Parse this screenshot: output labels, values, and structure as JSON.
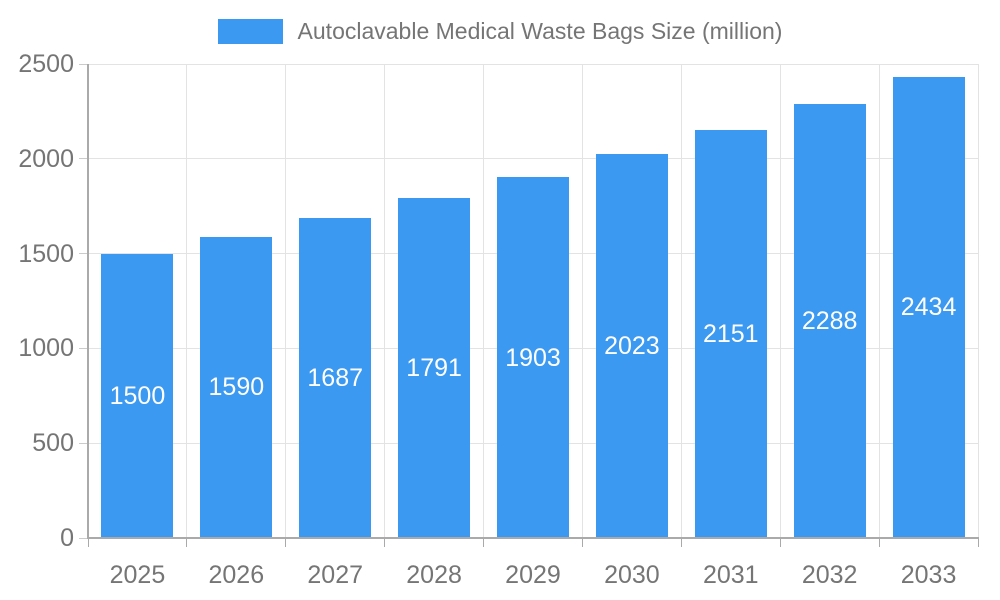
{
  "legend": {
    "series_label": "Autoclavable Medical Waste Bags Size (million)"
  },
  "chart_data": {
    "type": "bar",
    "title": "Autoclavable Medical Waste Bags Size (million)",
    "categories": [
      "2025",
      "2026",
      "2027",
      "2028",
      "2029",
      "2030",
      "2031",
      "2032",
      "2033"
    ],
    "values": [
      1500,
      1590,
      1687,
      1791,
      1903,
      2023,
      2151,
      2288,
      2434
    ],
    "xlabel": "",
    "ylabel": "",
    "ylim": [
      0,
      2500
    ],
    "yticks": [
      0,
      500,
      1000,
      1500,
      2000,
      2500
    ],
    "grid": true,
    "legend_position": "top-center",
    "value_labels": "inside-bar-centered",
    "colors": {
      "bar": "#3B99F2",
      "bar_label": "#FFFFFF",
      "axis_text": "#757575",
      "gridline": "#E3E3E3",
      "axis_line": "#AAAAAA",
      "tick": "#CBCBCB"
    }
  }
}
